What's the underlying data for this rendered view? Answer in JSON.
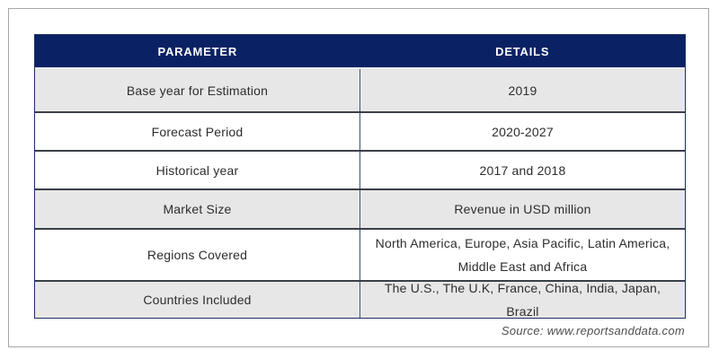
{
  "chart_data": {
    "type": "table",
    "columns": [
      "PARAMETER",
      "DETAILS"
    ],
    "rows": [
      [
        "Base year for Estimation",
        "2019"
      ],
      [
        "Forecast Period",
        "2020-2027"
      ],
      [
        "Historical year",
        "2017 and 2018"
      ],
      [
        "Market Size",
        "Revenue in USD million"
      ],
      [
        "Regions Covered",
        "North America, Europe, Asia Pacific, Latin America, Middle East and Africa"
      ],
      [
        "Countries Included",
        "The U.S., The  U.K, France, China, India, Japan, Brazil"
      ]
    ],
    "shaded_rows": [
      true,
      false,
      false,
      true,
      false,
      true
    ],
    "source": "Source: www.reportsanddata.com"
  },
  "colors": {
    "header_bg": "#0a2163",
    "header_text": "#ffffff",
    "shaded_row_bg": "#e8e7e7",
    "row_border": "#3a3f48",
    "table_border": "#1c2f63",
    "col_divider": "#3a5078",
    "cell_text": "#2d2d2d",
    "source_text": "#4d4d4d"
  }
}
